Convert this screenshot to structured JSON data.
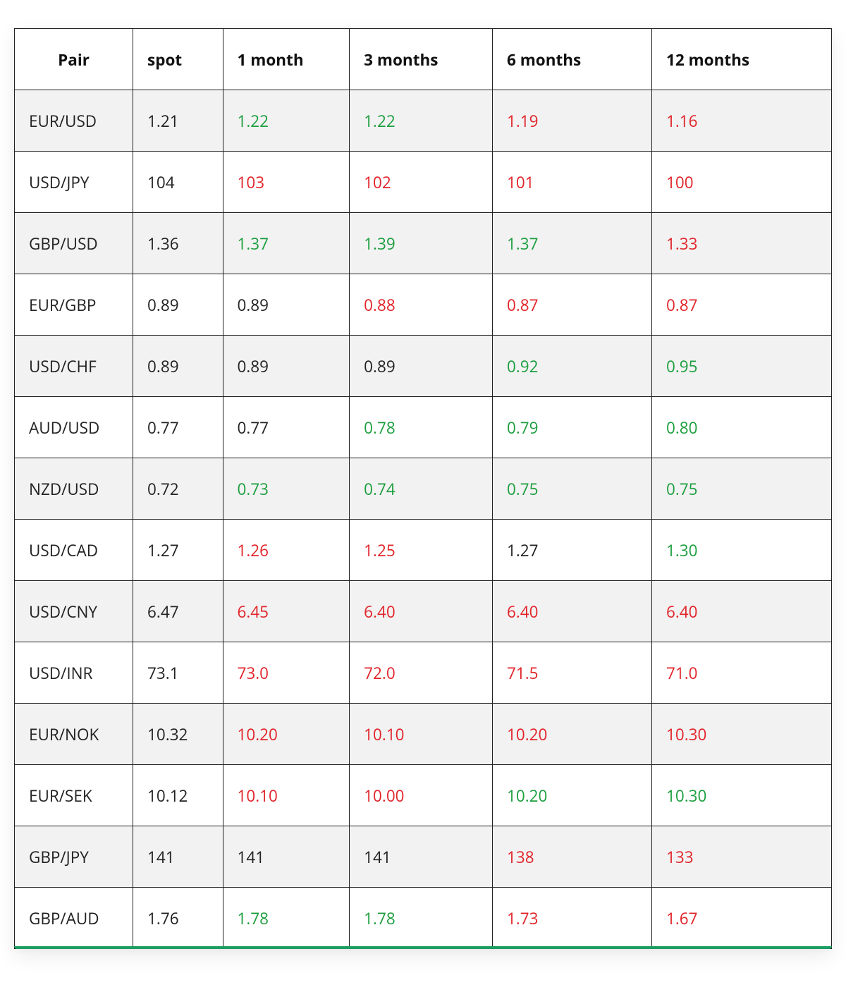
{
  "table": {
    "type": "table",
    "colors": {
      "up": "#1c9e3e",
      "down": "#e1242a",
      "neutral": "#222222",
      "stripe_odd": "#f2f2f2",
      "stripe_even": "#ffffff",
      "border": "#222222",
      "accent_bottom": "#1c9e63"
    },
    "columns": [
      "Pair",
      "spot",
      "1 month",
      "3 months",
      "6 months",
      "12 months"
    ],
    "rows": [
      {
        "pair": "EUR/USD",
        "cells": [
          {
            "value": "1.21",
            "trend": "neutral"
          },
          {
            "value": "1.22",
            "trend": "up"
          },
          {
            "value": "1.22",
            "trend": "up"
          },
          {
            "value": "1.19",
            "trend": "down"
          },
          {
            "value": "1.16",
            "trend": "down"
          }
        ]
      },
      {
        "pair": "USD/JPY",
        "cells": [
          {
            "value": "104",
            "trend": "neutral"
          },
          {
            "value": "103",
            "trend": "down"
          },
          {
            "value": "102",
            "trend": "down"
          },
          {
            "value": "101",
            "trend": "down"
          },
          {
            "value": "100",
            "trend": "down"
          }
        ]
      },
      {
        "pair": "GBP/USD",
        "cells": [
          {
            "value": "1.36",
            "trend": "neutral"
          },
          {
            "value": "1.37",
            "trend": "up"
          },
          {
            "value": "1.39",
            "trend": "up"
          },
          {
            "value": "1.37",
            "trend": "up"
          },
          {
            "value": "1.33",
            "trend": "down"
          }
        ]
      },
      {
        "pair": "EUR/GBP",
        "cells": [
          {
            "value": "0.89",
            "trend": "neutral"
          },
          {
            "value": "0.89",
            "trend": "neutral"
          },
          {
            "value": "0.88",
            "trend": "down"
          },
          {
            "value": "0.87",
            "trend": "down"
          },
          {
            "value": "0.87",
            "trend": "down"
          }
        ]
      },
      {
        "pair": "USD/CHF",
        "cells": [
          {
            "value": "0.89",
            "trend": "neutral"
          },
          {
            "value": "0.89",
            "trend": "neutral"
          },
          {
            "value": "0.89",
            "trend": "neutral"
          },
          {
            "value": "0.92",
            "trend": "up"
          },
          {
            "value": "0.95",
            "trend": "up"
          }
        ]
      },
      {
        "pair": "AUD/USD",
        "cells": [
          {
            "value": "0.77",
            "trend": "neutral"
          },
          {
            "value": "0.77",
            "trend": "neutral"
          },
          {
            "value": "0.78",
            "trend": "up"
          },
          {
            "value": "0.79",
            "trend": "up"
          },
          {
            "value": "0.80",
            "trend": "up"
          }
        ]
      },
      {
        "pair": "NZD/USD",
        "cells": [
          {
            "value": "0.72",
            "trend": "neutral"
          },
          {
            "value": "0.73",
            "trend": "up"
          },
          {
            "value": "0.74",
            "trend": "up"
          },
          {
            "value": "0.75",
            "trend": "up"
          },
          {
            "value": "0.75",
            "trend": "up"
          }
        ]
      },
      {
        "pair": "USD/CAD",
        "cells": [
          {
            "value": "1.27",
            "trend": "neutral"
          },
          {
            "value": "1.26",
            "trend": "down"
          },
          {
            "value": "1.25",
            "trend": "down"
          },
          {
            "value": "1.27",
            "trend": "neutral"
          },
          {
            "value": "1.30",
            "trend": "up"
          }
        ]
      },
      {
        "pair": "USD/CNY",
        "cells": [
          {
            "value": "6.47",
            "trend": "neutral"
          },
          {
            "value": "6.45",
            "trend": "down"
          },
          {
            "value": "6.40",
            "trend": "down"
          },
          {
            "value": "6.40",
            "trend": "down"
          },
          {
            "value": "6.40",
            "trend": "down"
          }
        ]
      },
      {
        "pair": "USD/INR",
        "cells": [
          {
            "value": "73.1",
            "trend": "neutral"
          },
          {
            "value": "73.0",
            "trend": "down"
          },
          {
            "value": "72.0",
            "trend": "down"
          },
          {
            "value": "71.5",
            "trend": "down"
          },
          {
            "value": "71.0",
            "trend": "down"
          }
        ]
      },
      {
        "pair": "EUR/NOK",
        "cells": [
          {
            "value": "10.32",
            "trend": "neutral"
          },
          {
            "value": "10.20",
            "trend": "down"
          },
          {
            "value": "10.10",
            "trend": "down"
          },
          {
            "value": "10.20",
            "trend": "down"
          },
          {
            "value": "10.30",
            "trend": "down"
          }
        ]
      },
      {
        "pair": "EUR/SEK",
        "cells": [
          {
            "value": "10.12",
            "trend": "neutral"
          },
          {
            "value": "10.10",
            "trend": "down"
          },
          {
            "value": "10.00",
            "trend": "down"
          },
          {
            "value": "10.20",
            "trend": "up"
          },
          {
            "value": "10.30",
            "trend": "up"
          }
        ]
      },
      {
        "pair": "GBP/JPY",
        "cells": [
          {
            "value": "141",
            "trend": "neutral"
          },
          {
            "value": "141",
            "trend": "neutral"
          },
          {
            "value": "141",
            "trend": "neutral"
          },
          {
            "value": "138",
            "trend": "down"
          },
          {
            "value": "133",
            "trend": "down"
          }
        ]
      },
      {
        "pair": "GBP/AUD",
        "cells": [
          {
            "value": "1.76",
            "trend": "neutral"
          },
          {
            "value": "1.78",
            "trend": "up"
          },
          {
            "value": "1.78",
            "trend": "up"
          },
          {
            "value": "1.73",
            "trend": "down"
          },
          {
            "value": "1.67",
            "trend": "down"
          }
        ]
      }
    ]
  }
}
